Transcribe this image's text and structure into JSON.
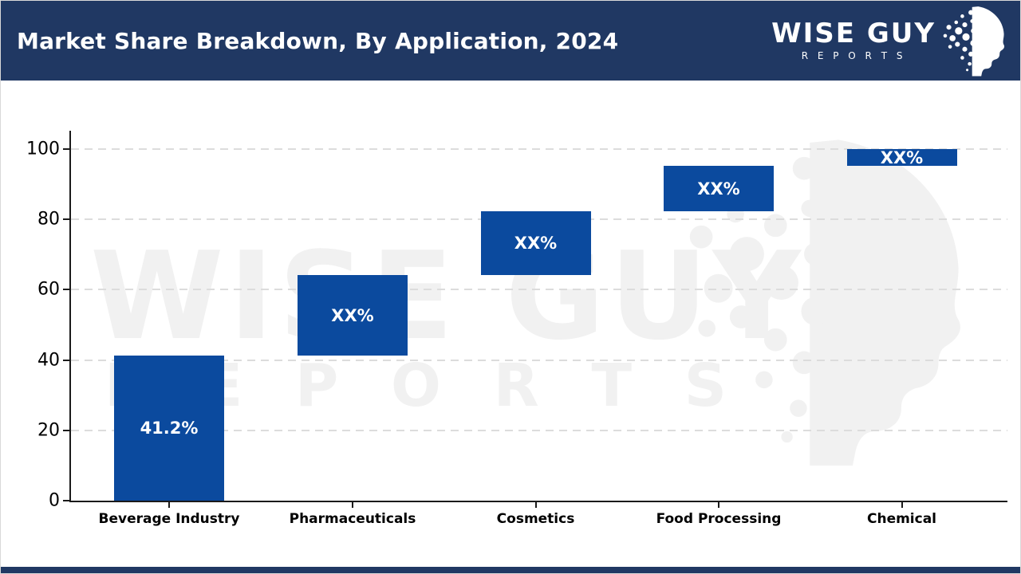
{
  "header": {
    "title": "Market Share Breakdown, By Application, 2024",
    "bg_color": "#203863",
    "brand": {
      "line1": "WISE GUY",
      "line2": "R E P O R T S"
    }
  },
  "footer": {
    "bg_color": "#203863"
  },
  "watermark": {
    "line1": "WISE GUY",
    "line2": "R E P O R T S"
  },
  "chart_data": {
    "type": "bar",
    "subtype": "floating-waterfall",
    "title": "Market Share Breakdown, By Application, 2024",
    "categories": [
      "Beverage Industry",
      "Pharmaceuticals",
      "Cosmetics",
      "Food Processing",
      "Chemical"
    ],
    "segments": [
      {
        "category": "Beverage Industry",
        "start": 0,
        "end": 41.2,
        "label": "41.2%"
      },
      {
        "category": "Pharmaceuticals",
        "start": 41.2,
        "end": 64.2,
        "label": "XX%"
      },
      {
        "category": "Cosmetics",
        "start": 64.2,
        "end": 82.2,
        "label": "XX%"
      },
      {
        "category": "Food Processing",
        "start": 82.2,
        "end": 95.2,
        "label": "XX%"
      },
      {
        "category": "Chemical",
        "start": 95.2,
        "end": 100,
        "label": "XX%"
      }
    ],
    "y_ticks": [
      0,
      20,
      40,
      60,
      80,
      100
    ],
    "ylim": [
      0,
      105
    ],
    "xlabel": "",
    "ylabel": "",
    "grid": "horizontal-dashed",
    "legend": "none",
    "bar_color": "#0b4a9e",
    "bar_label_color": "#ffffff",
    "axis_color": "#1a1a1a",
    "grid_color": "#dcdcdc"
  }
}
